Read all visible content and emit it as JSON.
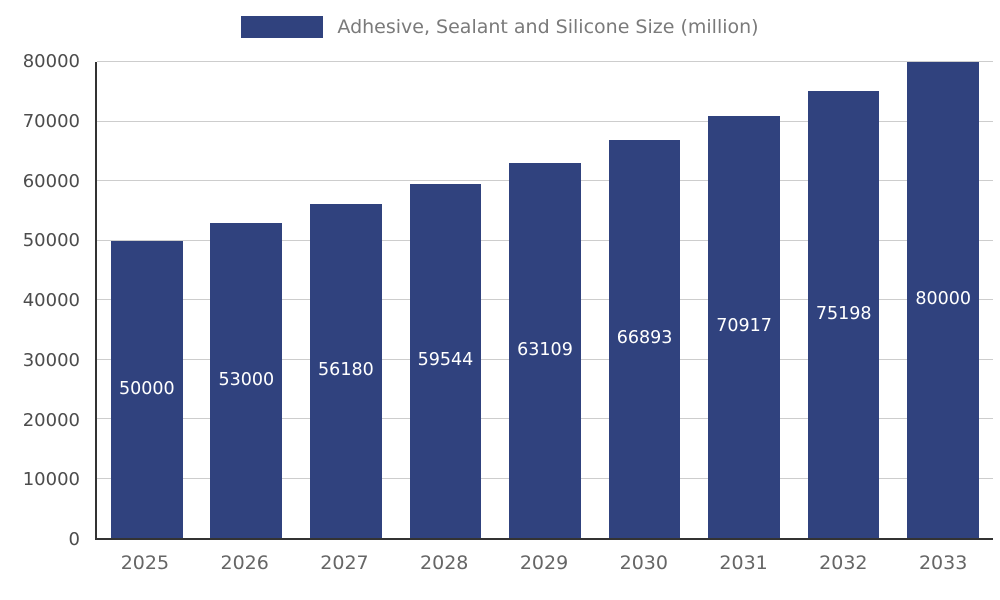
{
  "chart_data": {
    "type": "bar",
    "series_name": "Adhesive, Sealant and Silicone Size (million)",
    "categories": [
      "2025",
      "2026",
      "2027",
      "2028",
      "2029",
      "2030",
      "2031",
      "2032",
      "2033"
    ],
    "values": [
      50000,
      53000,
      56180,
      59544,
      63109,
      66893,
      70917,
      75198,
      80000
    ],
    "value_labels": [
      "50000",
      "53000",
      "56180",
      "59544",
      "63109",
      "66893",
      "70917",
      "75198",
      "80000"
    ],
    "xlabel": "",
    "ylabel": "",
    "ylim": [
      0,
      80000
    ],
    "yticks": [
      0,
      10000,
      20000,
      30000,
      40000,
      50000,
      60000,
      70000,
      80000
    ],
    "grid": true,
    "legend_position": "top",
    "bar_color": "#30427E",
    "value_label_color": "#ffffff",
    "axis_line_color": "#333333",
    "gridline_color": "#cdcdcd",
    "y_tick_color": "#4c4c4c",
    "x_tick_color": "#666666",
    "legend_text_color": "#7a7a7a"
  }
}
